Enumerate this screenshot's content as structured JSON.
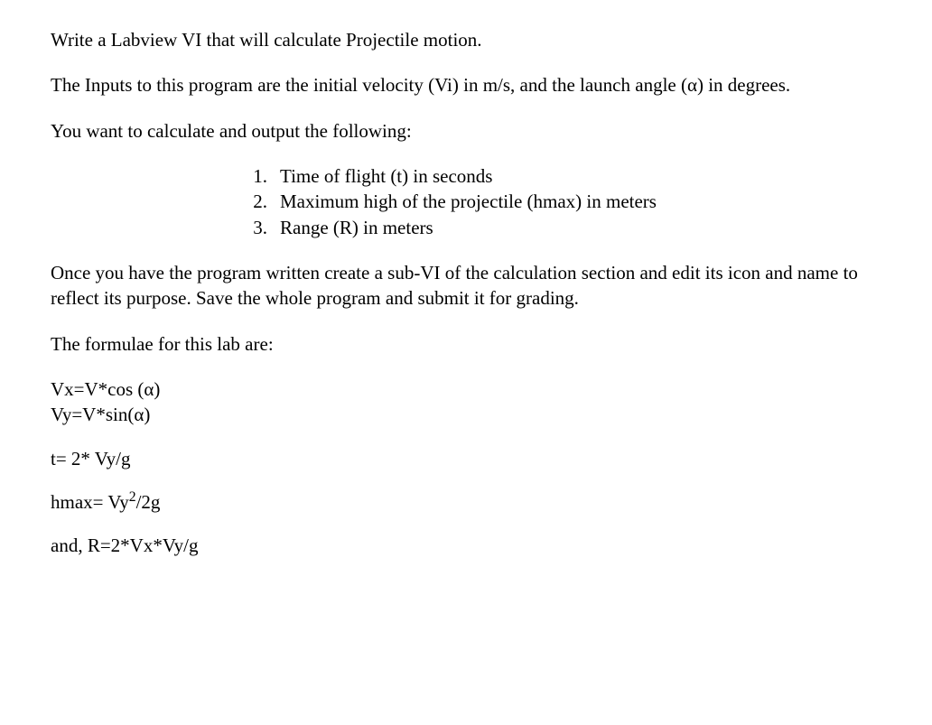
{
  "title": "Write a Labview VI that will calculate Projectile motion.",
  "inputs_desc": "The Inputs to this program are the initial velocity (Vi) in m/s, and the launch angle (α) in degrees.",
  "calculate_intro": "You want to calculate and output the following:",
  "outputs": [
    {
      "num": "1.",
      "text": "Time of flight (t) in seconds"
    },
    {
      "num": "2.",
      "text": "Maximum high of the projectile (hmax) in meters"
    },
    {
      "num": "3.",
      "text": "Range (R) in meters"
    }
  ],
  "instructions": "Once you have the program written create a sub-VI of the calculation section and edit its icon and name to reflect its purpose.  Save the whole program and submit it for grading.",
  "formulae_intro": "The formulae for this lab are:",
  "formulas": {
    "vx": "Vx=V*cos (α)",
    "vy": "Vy=V*sin(α)",
    "t": "t= 2* Vy/g",
    "hmax_pre": "hmax= Vy",
    "hmax_sup": "2",
    "hmax_post": "/2g",
    "r": "and, R=2*Vx*Vy/g"
  },
  "colors": {
    "background": "#ffffff",
    "text": "#000000"
  },
  "typography": {
    "font_family": "Times New Roman",
    "font_size_pt": 16
  }
}
